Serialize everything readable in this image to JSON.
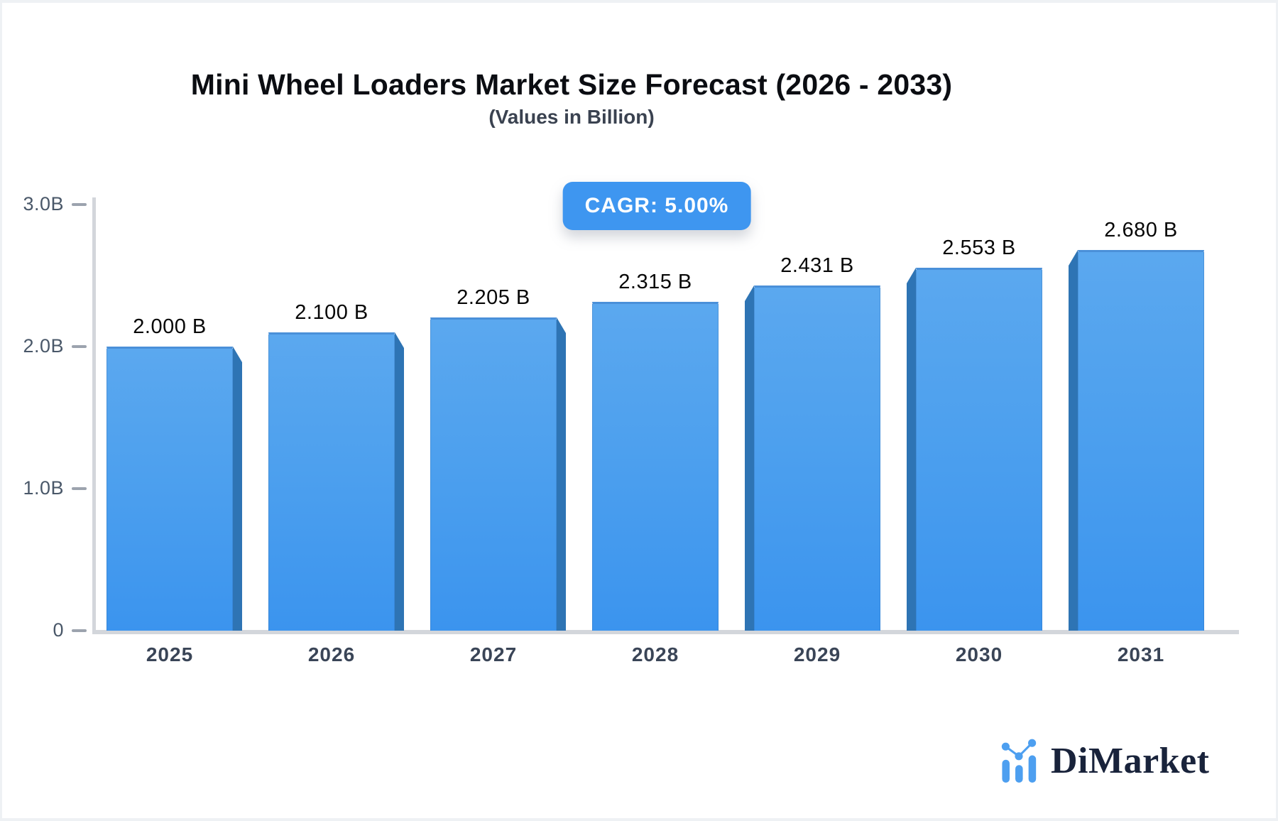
{
  "page": {
    "background": "#eef1f4",
    "card_background": "#ffffff"
  },
  "chart_data": {
    "type": "bar",
    "title": "Mini Wheel Loaders Market Size Forecast (2026 - 2033)",
    "subtitle": "(Values in Billion)",
    "badge_label": "CAGR: 5.00%",
    "unit": "Billion",
    "categories": [
      "2025",
      "2026",
      "2027",
      "2028",
      "2029",
      "2030",
      "2031"
    ],
    "values": [
      2.0,
      2.1,
      2.205,
      2.315,
      2.431,
      2.553,
      2.68
    ],
    "value_labels": [
      "2.000 B",
      "2.100 B",
      "2.205 B",
      "2.315 B",
      "2.431 B",
      "2.553 B",
      "2.680 B"
    ],
    "xlabel": "",
    "ylabel": "",
    "ylim": [
      0,
      3.0
    ],
    "yticks": [
      {
        "label": "3.0B",
        "value": 3.0
      },
      {
        "label": "2.0B",
        "value": 2.0
      },
      {
        "label": "1.0B",
        "value": 1.0
      },
      {
        "label": "0",
        "value": 0.0
      }
    ],
    "grid": false,
    "legend": false,
    "bar_style": "3d-center-perspective",
    "colors": {
      "bar_gradient_top": "#5ba8ef",
      "bar_gradient_bottom": "#3b94ee",
      "bar_top_edge": "#4a90d9",
      "bar_side_bevel": "#2e74b4",
      "badge_background": "#3e96f0",
      "badge_text": "#ffffff",
      "axis_line": "#d3d6db",
      "tick_dash": "#9ca3ae",
      "tick_label": "#4a5869",
      "category_label": "#3a4557",
      "value_label": "#070707"
    }
  },
  "brand": {
    "name": "DiMarket",
    "icon": "bar-line-chart-icon",
    "icon_color": "#4d9ff0",
    "text_color": "#19233b"
  }
}
